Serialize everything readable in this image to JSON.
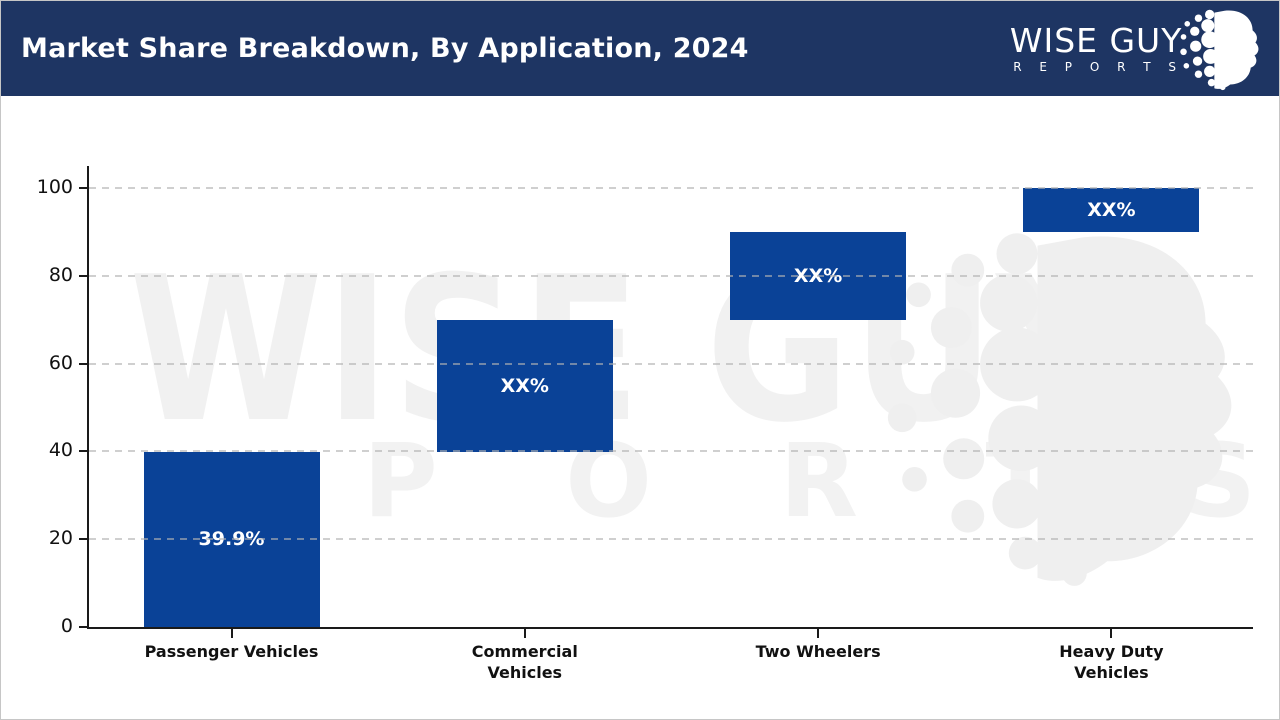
{
  "header": {
    "title": "Market Share Breakdown, By Application, 2024",
    "logo": {
      "wordmark": "WISE GUY",
      "subtext": "R E P O R T S"
    }
  },
  "watermark": {
    "wordmark": "WISE GUY",
    "subtext": "P O R T S"
  },
  "colors": {
    "header_bg": "#1e3563",
    "bar": "#0a4297",
    "bar_label": "#ffffff",
    "grid": "#d8d8d8",
    "axis": "#1a1a1a",
    "watermark": "#f1f1f1",
    "page_border": "#c6c6c6"
  },
  "chart_data": {
    "type": "bar",
    "variant": "cumulative-waterfall",
    "title": "Market Share Breakdown, By Application, 2024",
    "categories": [
      "Passenger Vehicles",
      "Commercial Vehicles",
      "Two Wheelers",
      "Heavy Duty Vehicles"
    ],
    "category_label_lines": [
      [
        "Passenger Vehicles"
      ],
      [
        "Commercial",
        "Vehicles"
      ],
      [
        "Two Wheelers"
      ],
      [
        "Heavy Duty",
        "Vehicles"
      ]
    ],
    "series": [
      {
        "name": "Market Share",
        "starts": [
          0,
          39.9,
          70,
          90
        ],
        "ends": [
          39.9,
          70,
          90,
          100
        ]
      }
    ],
    "values": [
      39.9,
      30.1,
      20,
      10
    ],
    "bar_labels": [
      "39.9%",
      "XX%",
      "XX%",
      "XX%"
    ],
    "yticks": [
      0,
      20,
      40,
      60,
      80,
      100
    ],
    "ylim": [
      0,
      105
    ],
    "xlabel": "",
    "ylabel": "",
    "grid": "horizontal-dashed",
    "legend": "none"
  }
}
